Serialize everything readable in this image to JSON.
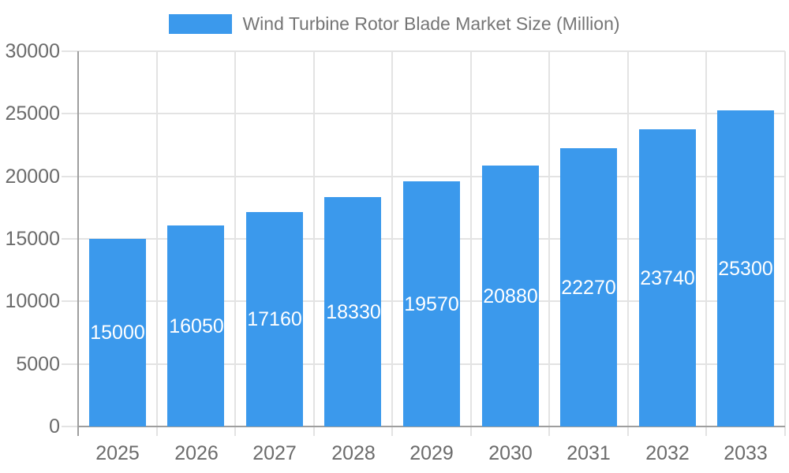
{
  "legend": {
    "label": "Wind Turbine Rotor Blade Market Size (Million)"
  },
  "chart_data": {
    "type": "bar",
    "title": "Wind Turbine Rotor Blade Market Size (Million)",
    "categories": [
      "2025",
      "2026",
      "2027",
      "2028",
      "2029",
      "2030",
      "2031",
      "2032",
      "2033"
    ],
    "values": [
      15000,
      16050,
      17160,
      18330,
      19570,
      20880,
      22270,
      23740,
      25300
    ],
    "series_name": "Wind Turbine Rotor Blade Market Size (Million)",
    "xlabel": "",
    "ylabel": "",
    "ylim": [
      0,
      30000
    ],
    "y_ticks": [
      0,
      5000,
      10000,
      15000,
      20000,
      25000,
      30000
    ],
    "grid": true,
    "value_labels": "inside-bar-centered",
    "legend_position": "top-center"
  },
  "colors": {
    "bar": "#3B99EC",
    "grid_line": "#e3e3e3",
    "axis_line": "#9e9e9e",
    "axis_text": "#6b6b6b",
    "legend_text": "#757575",
    "value_text": "#ffffff",
    "background": "#ffffff"
  }
}
